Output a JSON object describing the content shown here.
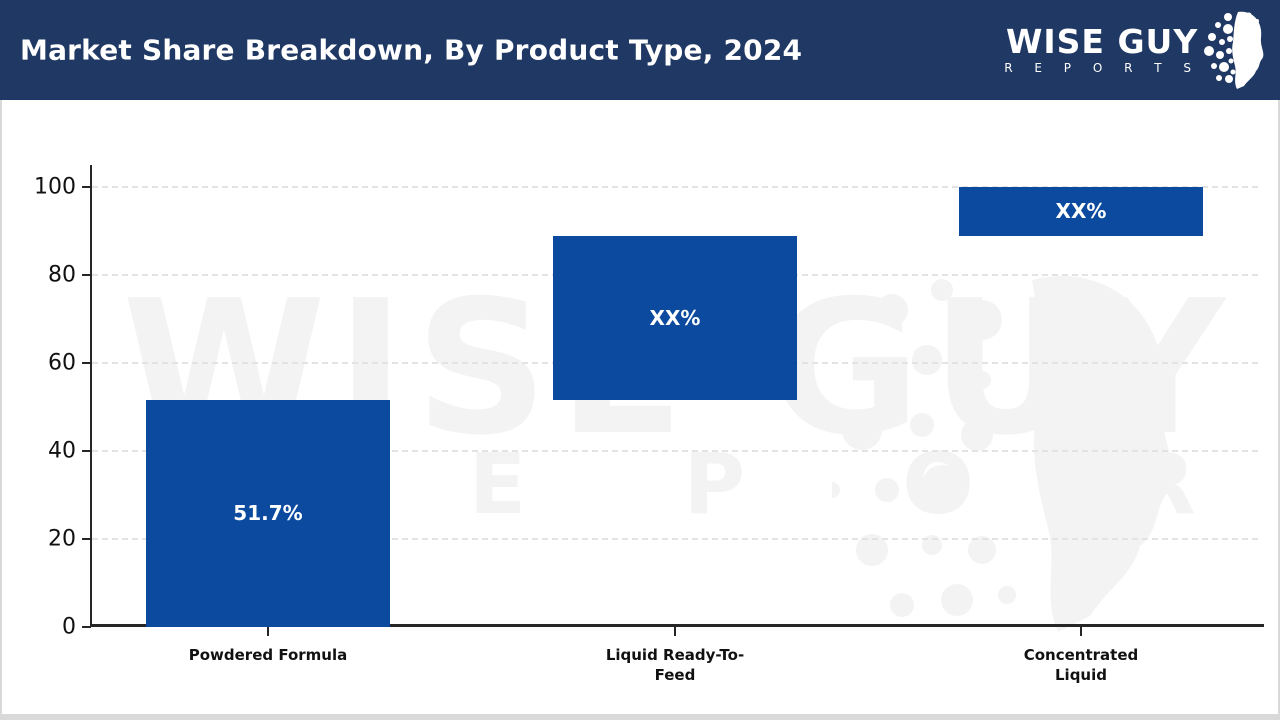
{
  "header": {
    "title": "Market Share Breakdown, By Product Type, 2024",
    "logo": {
      "line1": "WISE GUY",
      "line2": "R E P O R T S"
    }
  },
  "watermark": {
    "line1": "WISE GUY",
    "line2": "R E P O R T S"
  },
  "colors": {
    "header_bg": "#1F3864",
    "bar_blue": "#0B4A9E",
    "axis": "#262626",
    "gridline": "#E3E3E3",
    "frame_gray": "#D9D9D9",
    "watermark_gray": "#F3F3F3",
    "bar_label_text": "#FFFFFF"
  },
  "chart_data": {
    "type": "bar",
    "subtype": "waterfall",
    "title": "Market Share Breakdown, By Product Type, 2024",
    "categories": [
      "Powdered Formula",
      "Liquid Ready-To-Feed",
      "Concentrated Liquid"
    ],
    "categories_display": [
      "Powdered Formula",
      "Liquid Ready-To-\nFeed",
      "Concentrated\nLiquid"
    ],
    "bars": [
      {
        "category": "Powdered Formula",
        "start": 0,
        "end": 51.7,
        "label": "51.7%"
      },
      {
        "category": "Liquid Ready-To-Feed",
        "start": 51.7,
        "end": 88.9,
        "label": "XX%"
      },
      {
        "category": "Concentrated Liquid",
        "start": 88.9,
        "end": 100,
        "label": "XX%"
      }
    ],
    "xlabel": "",
    "ylabel": "",
    "ylim": [
      0,
      100
    ],
    "yticks": [
      0,
      20,
      40,
      60,
      80,
      100
    ],
    "grid": "dashed-horizontal",
    "legend": "none"
  }
}
